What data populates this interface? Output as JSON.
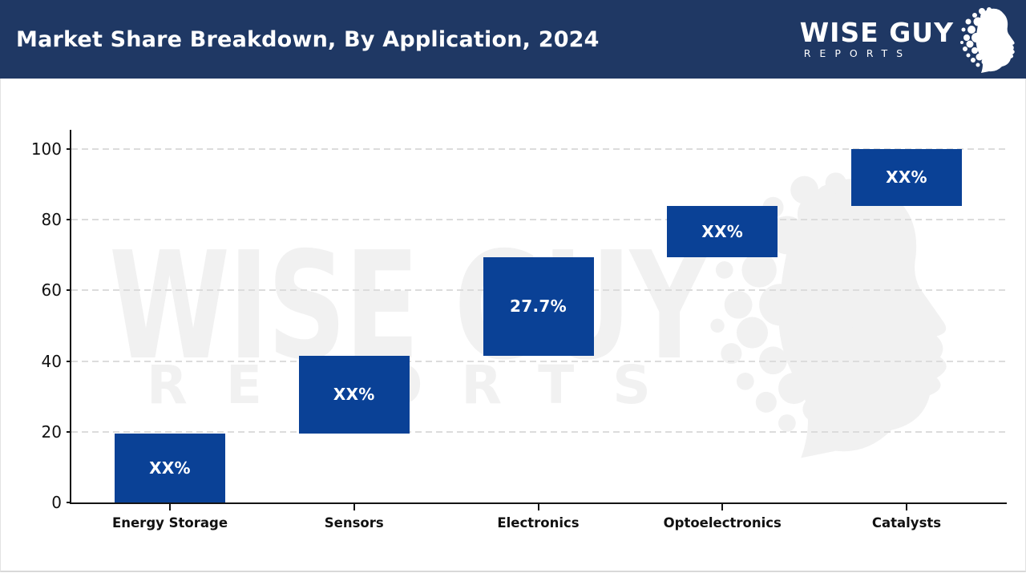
{
  "header": {
    "title": "Market Share Breakdown, By Application, 2024",
    "logo": {
      "line1": "WISE GUY",
      "line2": "REPORTS",
      "icon": "dotted-head-profile-icon"
    }
  },
  "watermark": {
    "line1": "WISE GUY",
    "line2": "REPORTS",
    "icon": "dotted-head-profile-icon"
  },
  "colors": {
    "header_bg": "#1f3864",
    "bar": "#0a4196",
    "bar_label": "#ffffff",
    "grid": "#dcdcdc",
    "axis": "#141414",
    "tick_label": "#111111",
    "watermark": "#f1f1f1",
    "background": "#ffffff"
  },
  "chart_data": {
    "type": "bar",
    "variant": "waterfall",
    "title": "Market Share Breakdown, By Application, 2024",
    "categories": [
      "Energy Storage",
      "Sensors",
      "Electronics",
      "Optoelectronics",
      "Catalysts"
    ],
    "segments": [
      {
        "category": "Energy Storage",
        "start": 0,
        "end": 19.5,
        "height": 19.5,
        "label": "XX%"
      },
      {
        "category": "Sensors",
        "start": 19.5,
        "end": 41.6,
        "height": 22.1,
        "label": "XX%"
      },
      {
        "category": "Electronics",
        "start": 41.6,
        "end": 69.3,
        "height": 27.7,
        "label": "27.7%"
      },
      {
        "category": "Optoelectronics",
        "start": 69.3,
        "end": 84.0,
        "height": 14.7,
        "label": "XX%"
      },
      {
        "category": "Catalysts",
        "start": 84.0,
        "end": 100.0,
        "height": 16.0,
        "label": "XX%"
      }
    ],
    "xlabel": "",
    "ylabel": "",
    "ylim": [
      0,
      100
    ],
    "yticks": [
      0,
      20,
      40,
      60,
      80,
      100
    ],
    "grid": "horizontal-dashed",
    "legend": "none"
  }
}
